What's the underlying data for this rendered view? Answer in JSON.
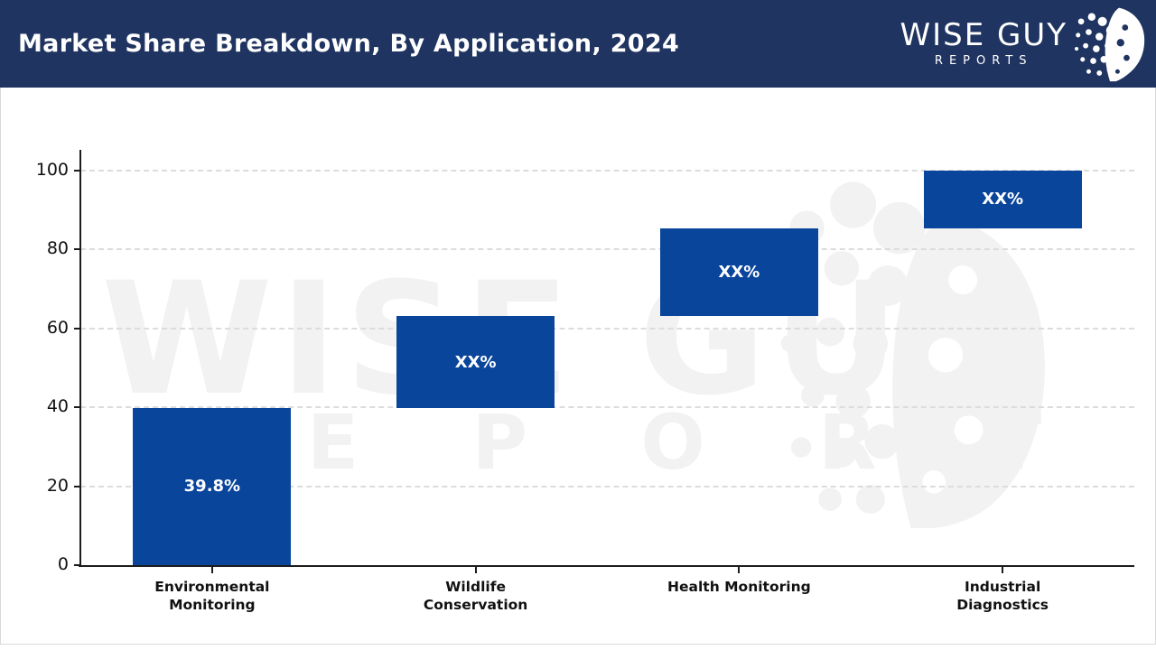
{
  "header": {
    "title": "Market Share Breakdown, By Application, 2024",
    "logo_line1": "WISE GUY",
    "logo_line2": "REPORTS"
  },
  "watermark": {
    "line1": "WISE GUY",
    "line2": "R E P O R T S"
  },
  "colors": {
    "header_bg": "#1f3460",
    "bar_blue": "#0a459c",
    "axis": "#1c1c1c",
    "gridline": "#dcdcdc",
    "watermark": "#f2f2f2",
    "frame_border": "#d9d9d9"
  },
  "chart_data": {
    "type": "bar",
    "subtype": "waterfall",
    "title": "Market Share Breakdown, By Application, 2024",
    "categories": [
      "Environmental\nMonitoring",
      "Wildlife\nConservation",
      "Health Monitoring",
      "Industrial\nDiagnostics"
    ],
    "segments": [
      {
        "category": "Environmental Monitoring",
        "start": 0,
        "end": 39.8,
        "label": "39.8%"
      },
      {
        "category": "Wildlife Conservation",
        "start": 39.8,
        "end": 63,
        "label": "XX%"
      },
      {
        "category": "Health Monitoring",
        "start": 63,
        "end": 85.3,
        "label": "XX%"
      },
      {
        "category": "Industrial Diagnostics",
        "start": 85.3,
        "end": 100,
        "label": "XX%"
      }
    ],
    "y_ticks": [
      0,
      20,
      40,
      60,
      80,
      100
    ],
    "ylim": [
      0,
      100
    ],
    "xlabel": "",
    "ylabel": "",
    "legend": "none",
    "grid": "horizontal-dashed",
    "bar_color": "#0a459c",
    "bar_label_color": "#ffffff"
  }
}
